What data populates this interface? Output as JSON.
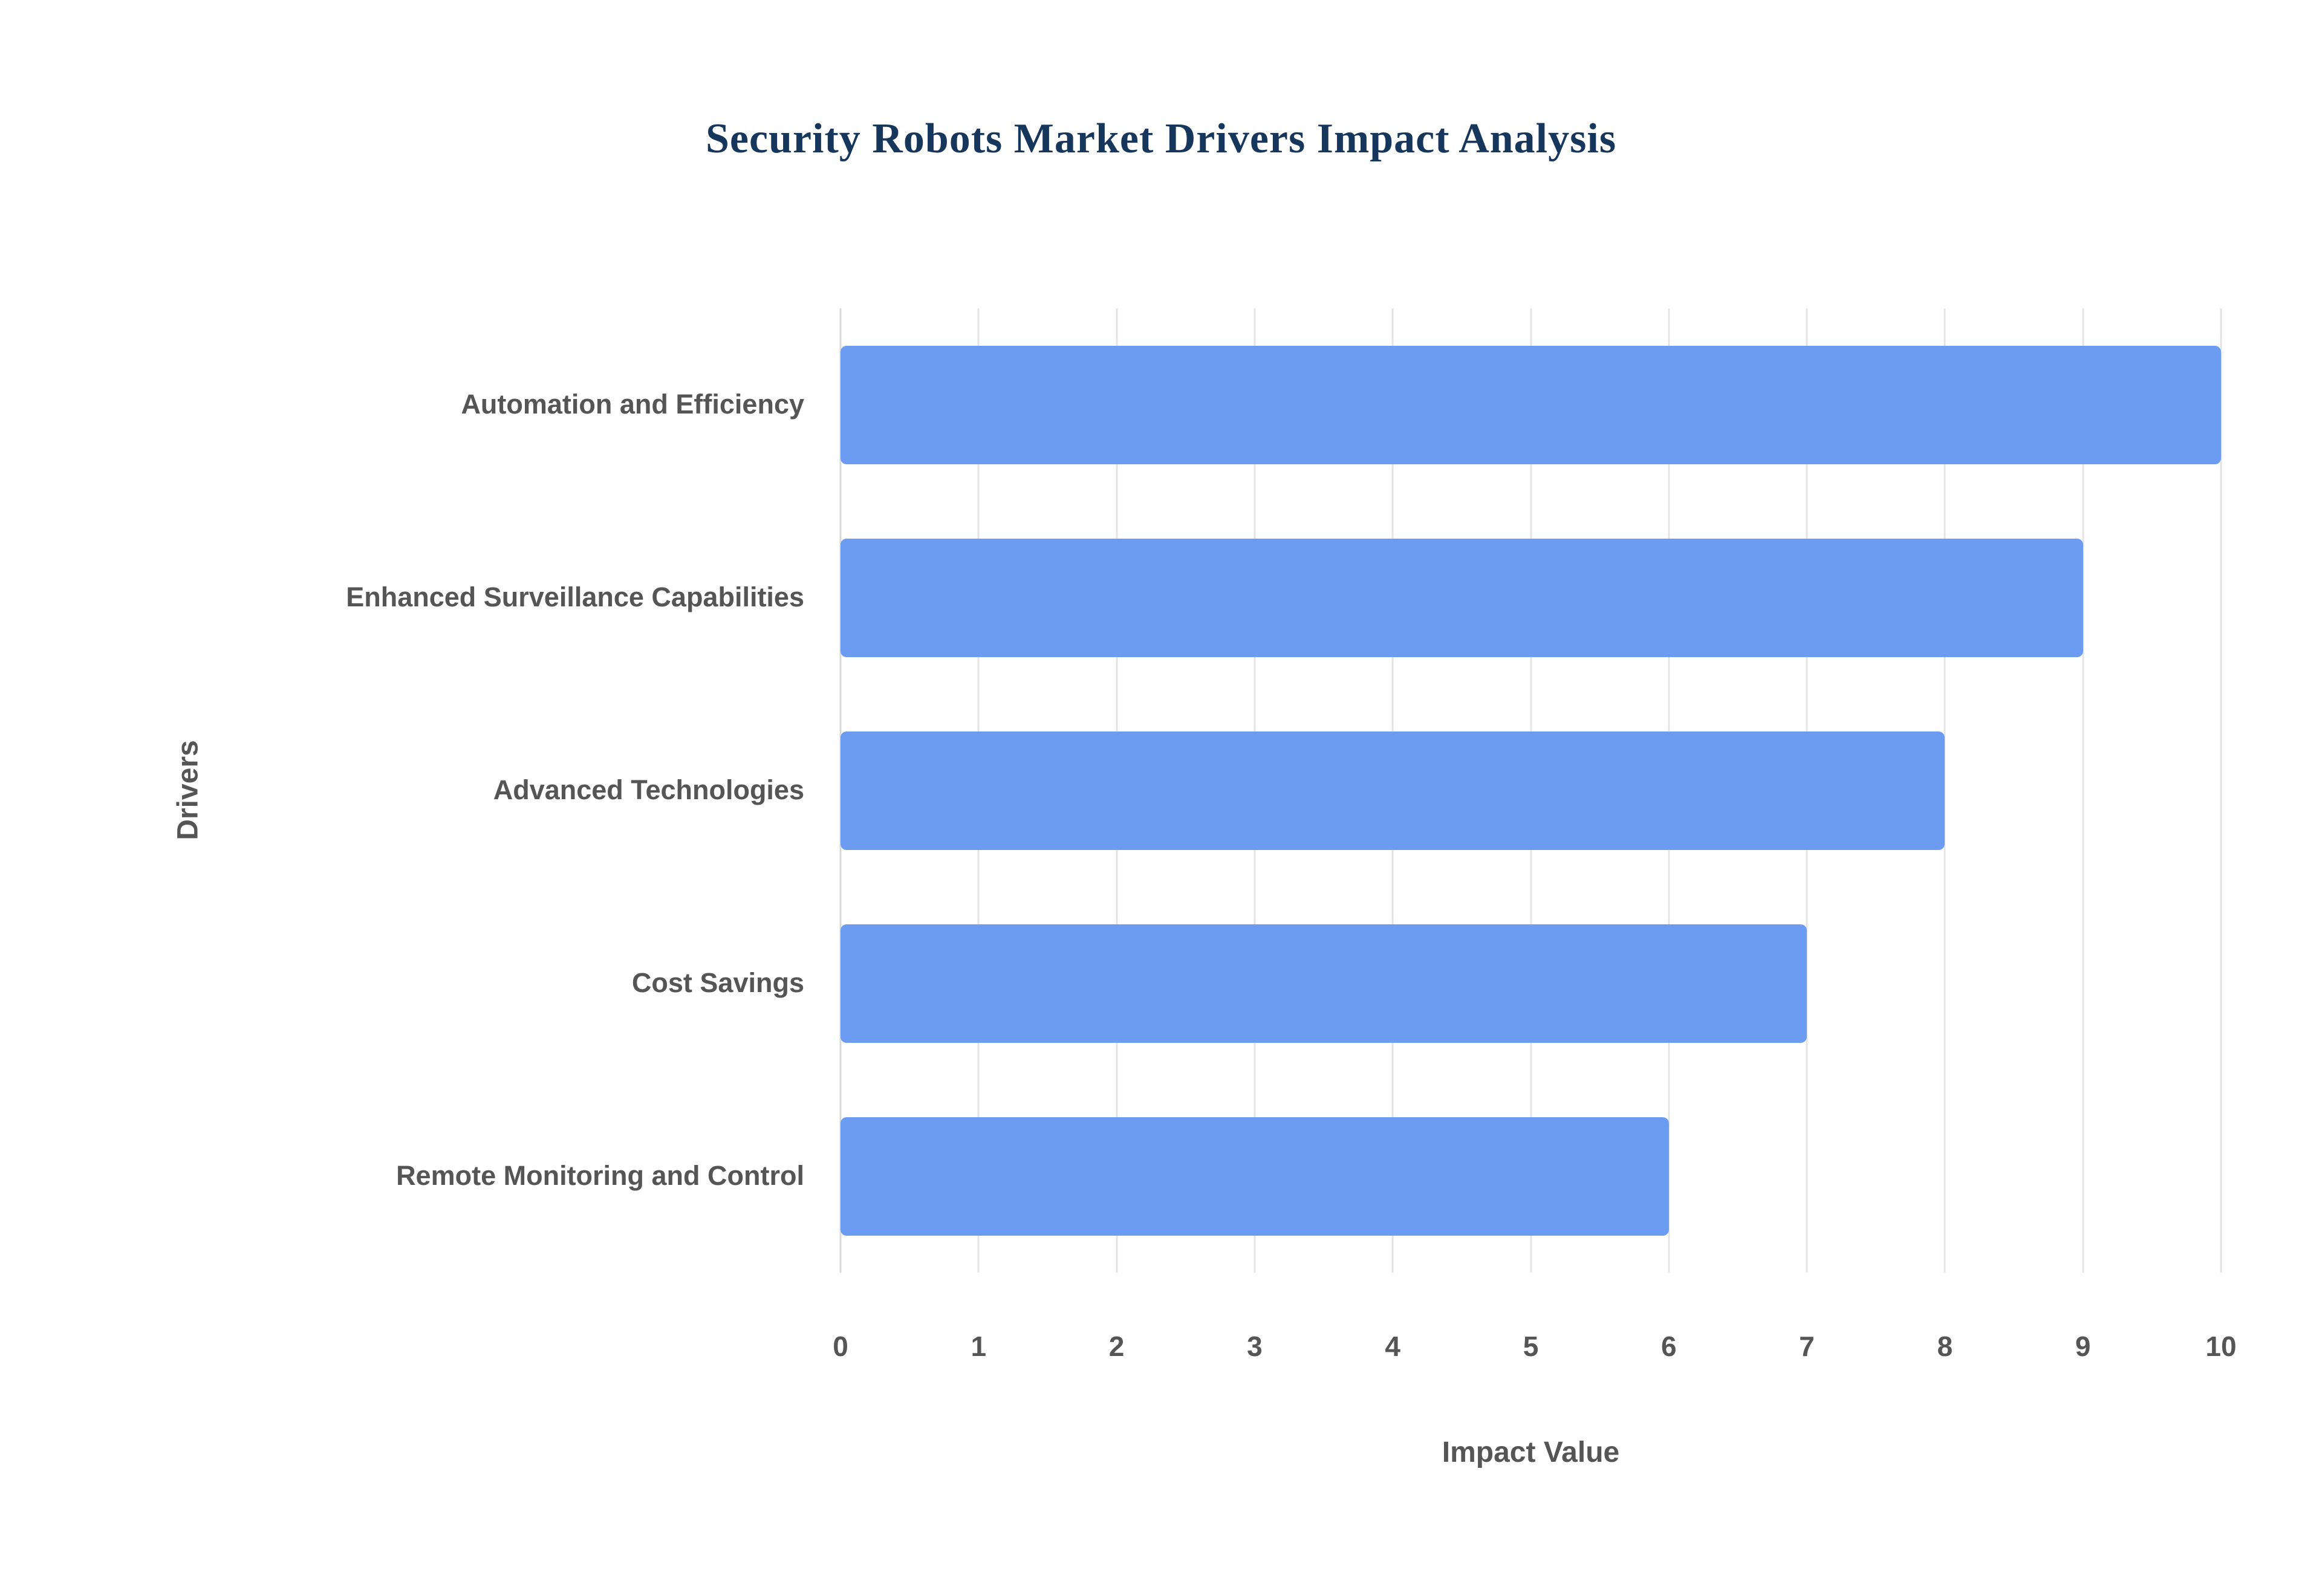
{
  "page": {
    "background": "#ffffff"
  },
  "chart_data": {
    "type": "bar",
    "orientation": "horizontal",
    "title": "Security Robots Market Drivers Impact Analysis",
    "categories": [
      "Automation and Efficiency",
      "Enhanced Surveillance Capabilities",
      "Advanced Technologies",
      "Cost Savings",
      "Remote Monitoring and Control"
    ],
    "values": [
      10,
      9,
      8,
      7,
      6
    ],
    "xlabel": "Impact Value",
    "ylabel": "Drivers",
    "xlim": [
      0,
      10
    ],
    "xticks": [
      0,
      1,
      2,
      3,
      4,
      5,
      6,
      7,
      8,
      9,
      10
    ],
    "grid": true,
    "legend": "none",
    "bar_color": "#6C9BF2",
    "title_color": "#16365C",
    "label_color": "#555555",
    "grid_color": "#e4e4e4"
  }
}
